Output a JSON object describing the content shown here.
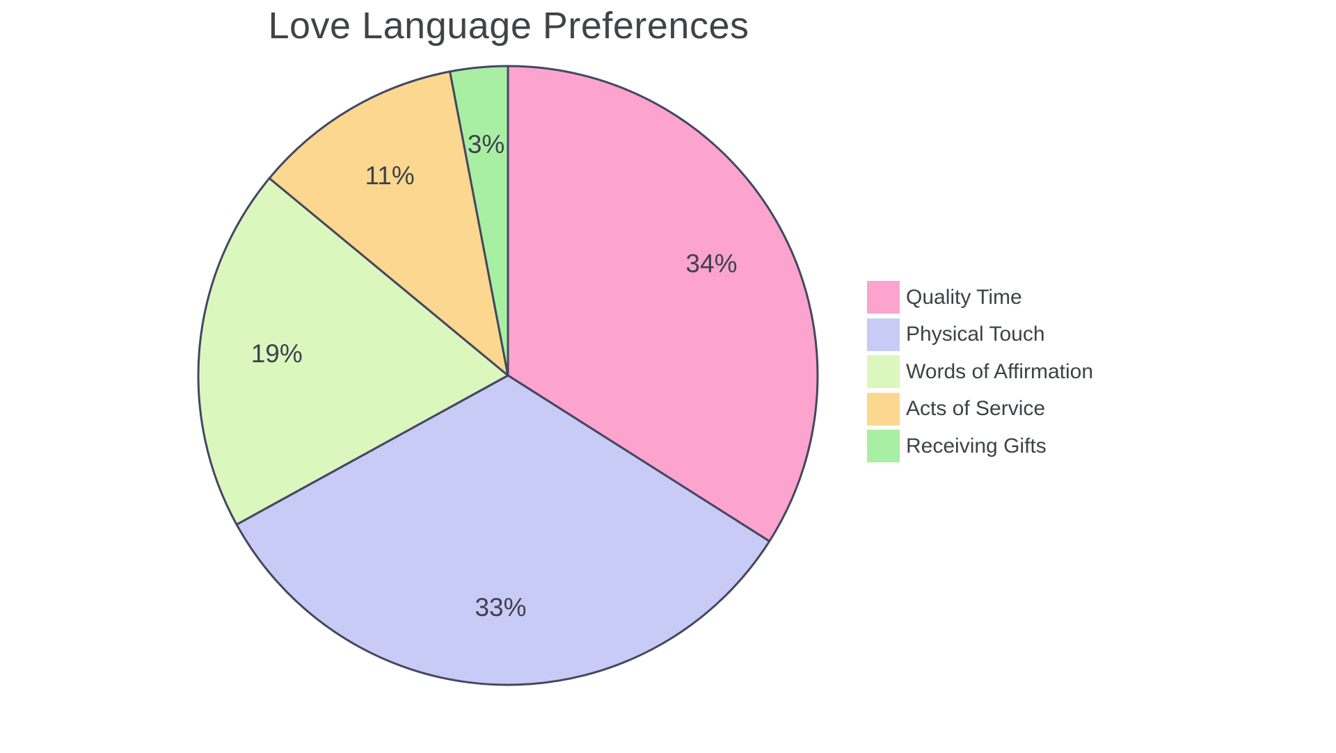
{
  "page": {
    "background": "#FFFFFF",
    "text_color": "#3F4149"
  },
  "chart_data": {
    "type": "pie",
    "title": "Love Language Preferences",
    "categories": [
      "Quality Time",
      "Physical Touch",
      "Words of Affirmation",
      "Acts of Service",
      "Receiving Gifts"
    ],
    "values": [
      34,
      33,
      19,
      11,
      3
    ],
    "percent_labels": [
      "34%",
      "33%",
      "19%",
      "11%",
      "3%"
    ],
    "colors": [
      "#FCA3CE",
      "#C9CBF7",
      "#DBF7BE",
      "#FBD78F",
      "#A9EFA3"
    ],
    "outline_color": "#434760",
    "start_angle": "top",
    "direction": "clockwise",
    "label_distance": 0.75,
    "legend_position": "right"
  }
}
